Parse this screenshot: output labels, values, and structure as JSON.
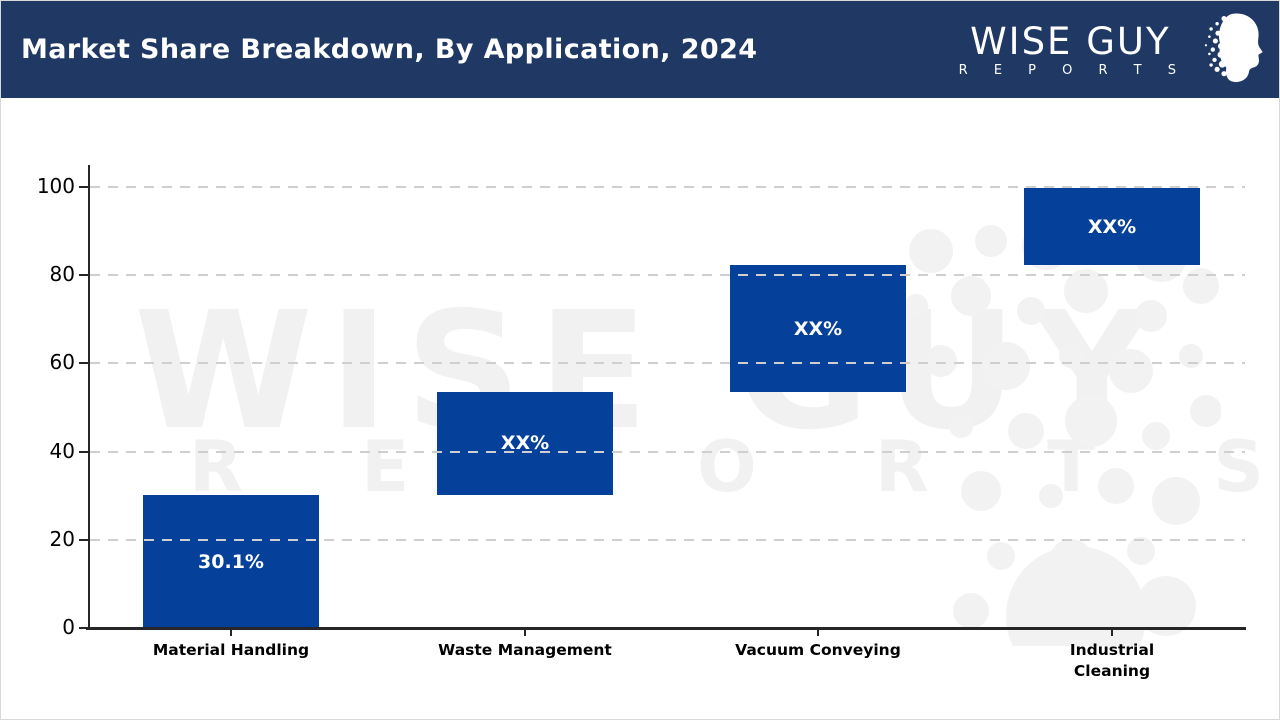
{
  "header": {
    "title": "Market Share Breakdown, By Application, 2024",
    "logo": {
      "line1": "WISE GUY",
      "line2": "R E P O R T S"
    }
  },
  "watermark": {
    "line1": "WISE GUY",
    "line2": "R E P O R T S"
  },
  "colors": {
    "header_bg": "#1f3864",
    "bar": "#05409a",
    "axis": "#262626",
    "grid": "#cfcfcf",
    "watermark": "#f1f1f1"
  },
  "chart_data": {
    "type": "bar",
    "subtype": "floating-waterfall",
    "title": "Market Share Breakdown, By Application, 2024",
    "categories": [
      "Material Handling",
      "Waste Management",
      "Vacuum Conveying",
      "Industrial Cleaning"
    ],
    "series": [
      {
        "name": "Material Handling",
        "start": 0,
        "end": 30.1,
        "label": "30.1%"
      },
      {
        "name": "Waste Management",
        "start": 30.1,
        "end": 53.6,
        "label": "XX%"
      },
      {
        "name": "Vacuum Conveying",
        "start": 53.6,
        "end": 82.2,
        "label": "XX%"
      },
      {
        "name": "Industrial Cleaning",
        "start": 82.2,
        "end": 99.8,
        "label": "XX%"
      }
    ],
    "ylim": [
      0,
      105
    ],
    "yticks": [
      0,
      20,
      40,
      60,
      80,
      100
    ],
    "xlabel": "",
    "ylabel": "",
    "grid": "horizontal-dashed",
    "legend": "none",
    "bar_color": "#05409a",
    "bar_label_color": "#ffffff"
  }
}
